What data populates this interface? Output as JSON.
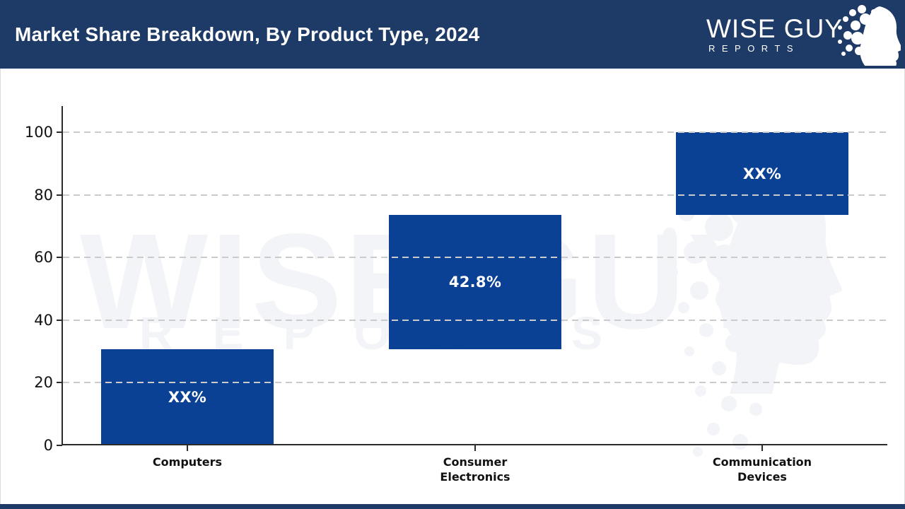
{
  "header": {
    "title": "Market Share Breakdown, By Product Type, 2024",
    "brand_line1": "WISE GUY",
    "brand_line2": "REPORTS",
    "bg_color": "#1e3a66"
  },
  "watermark": {
    "line1": "WISE GUY",
    "line2": "REPORTS",
    "color": "#f3f4f7"
  },
  "chart_data": {
    "type": "bar",
    "subtype": "floating-range-bars (waterfall style market share breakdown)",
    "title": "Market Share Breakdown, By Product Type, 2024",
    "categories": [
      "Computers",
      "Consumer Electronics",
      "Communication Devices"
    ],
    "series": [
      {
        "name": "Computers",
        "start": 0,
        "end": 30.7,
        "label": "XX%"
      },
      {
        "name": "Consumer Electronics",
        "start": 30.7,
        "end": 73.5,
        "label": "42.8%"
      },
      {
        "name": "Communication Devices",
        "start": 73.5,
        "end": 100,
        "label": "XX%"
      }
    ],
    "xlabel": "",
    "ylabel": "",
    "ylim": [
      0,
      100
    ],
    "yticks": [
      0,
      20,
      40,
      60,
      80,
      100
    ],
    "grid": "horizontal dashed lines drawn over bars",
    "legend": "none",
    "bar_color": "#0a4195",
    "bar_label_color": "#ffffff",
    "grid_color": "#cbcbcb",
    "axis_color": "#2b2b2b",
    "tick_label_color": "#111111"
  },
  "footer": {
    "bg_color": "#1e3a66"
  }
}
